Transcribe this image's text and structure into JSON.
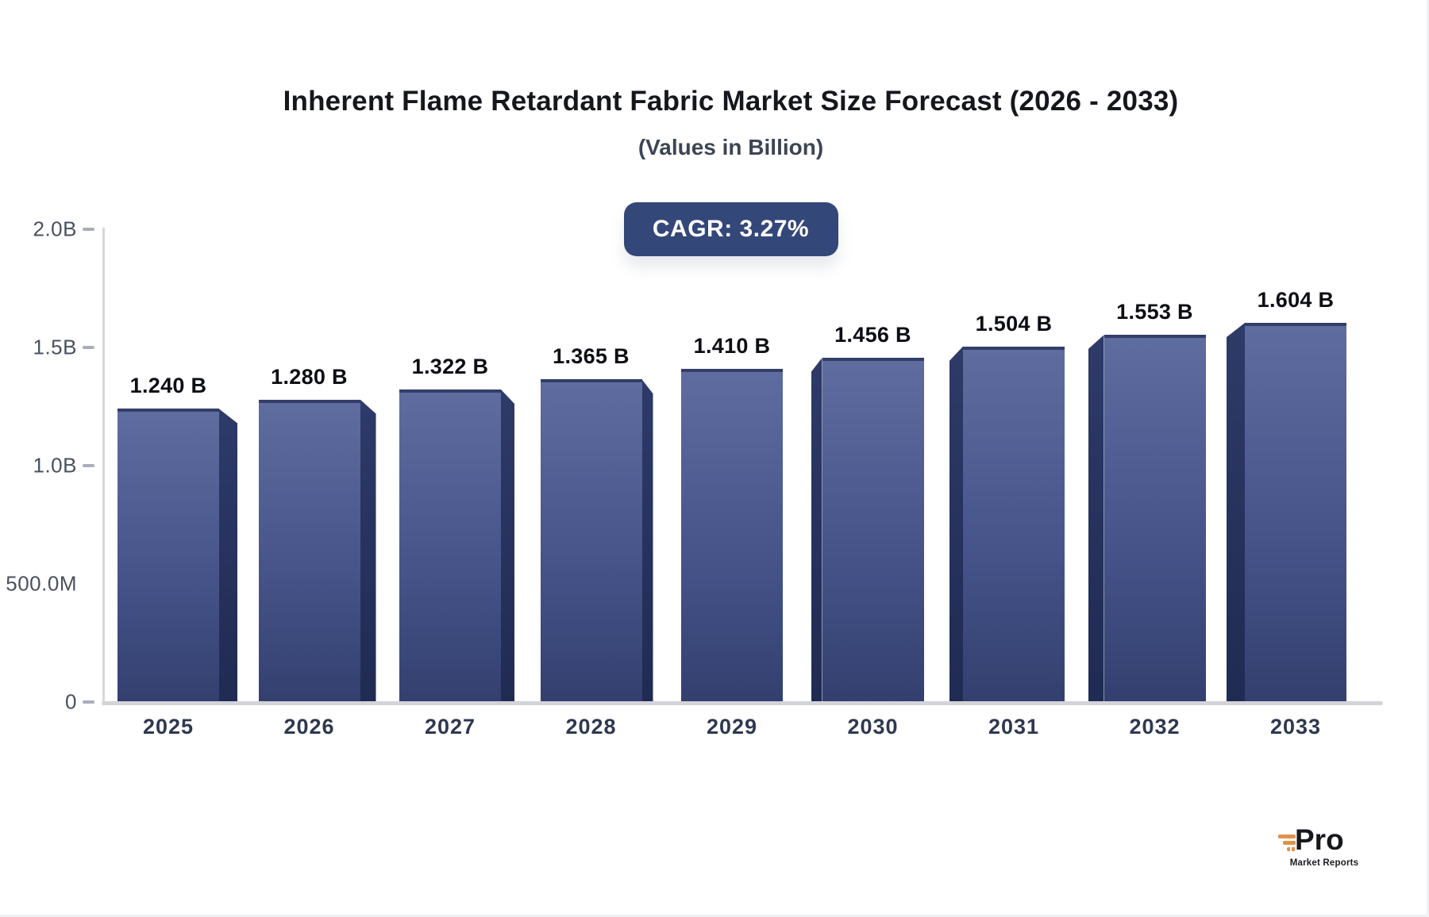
{
  "title": "Inherent Flame Retardant Fabric Market Size Forecast (2026 - 2033)",
  "subtitle": "(Values in Billion)",
  "cagr_badge": "CAGR: 3.27%",
  "logo": {
    "brand": "Pro",
    "tagline": "Market Reports"
  },
  "colors": {
    "badge_bg": "#344779",
    "bar_face_top": "#5e6c9f",
    "bar_face_bottom": "#323f6e",
    "bar_side": "#202b53",
    "axis_line": "#d5d6da",
    "logo_orange": "#e2914d",
    "title_text": "#15171d",
    "subtitle_text": "#3d4554",
    "value_label_text": "#0c0e13",
    "year_label_text": "#2e3850"
  },
  "chart_data": {
    "type": "bar",
    "title": "Inherent Flame Retardant Fabric Market Size Forecast (2026 - 2033)",
    "subtitle": "(Values in Billion)",
    "cagr_percent": 3.27,
    "unit": "Billion USD",
    "categories": [
      "2025",
      "2026",
      "2027",
      "2028",
      "2029",
      "2030",
      "2031",
      "2032",
      "2033"
    ],
    "values": [
      1.24,
      1.28,
      1.322,
      1.365,
      1.41,
      1.456,
      1.504,
      1.553,
      1.604
    ],
    "value_labels": [
      "1.240 B",
      "1.280 B",
      "1.322 B",
      "1.365 B",
      "1.410 B",
      "1.456 B",
      "1.504 B",
      "1.553 B",
      "1.604 B"
    ],
    "xlabel": "",
    "ylabel": "",
    "ylim": [
      0,
      2.0
    ],
    "y_ticks": [
      {
        "label": "2.0B",
        "value": 2.0,
        "dash": true
      },
      {
        "label": "1.5B",
        "value": 1.5,
        "dash": true
      },
      {
        "label": "1.0B",
        "value": 1.0,
        "dash": true
      },
      {
        "label": "500.0M",
        "value": 0.5,
        "dash": false
      },
      {
        "label": "0",
        "value": 0.0,
        "dash": true
      }
    ],
    "grid": false,
    "legend": false,
    "style": "3d-extruded-bars, perspective folds face plot center"
  }
}
